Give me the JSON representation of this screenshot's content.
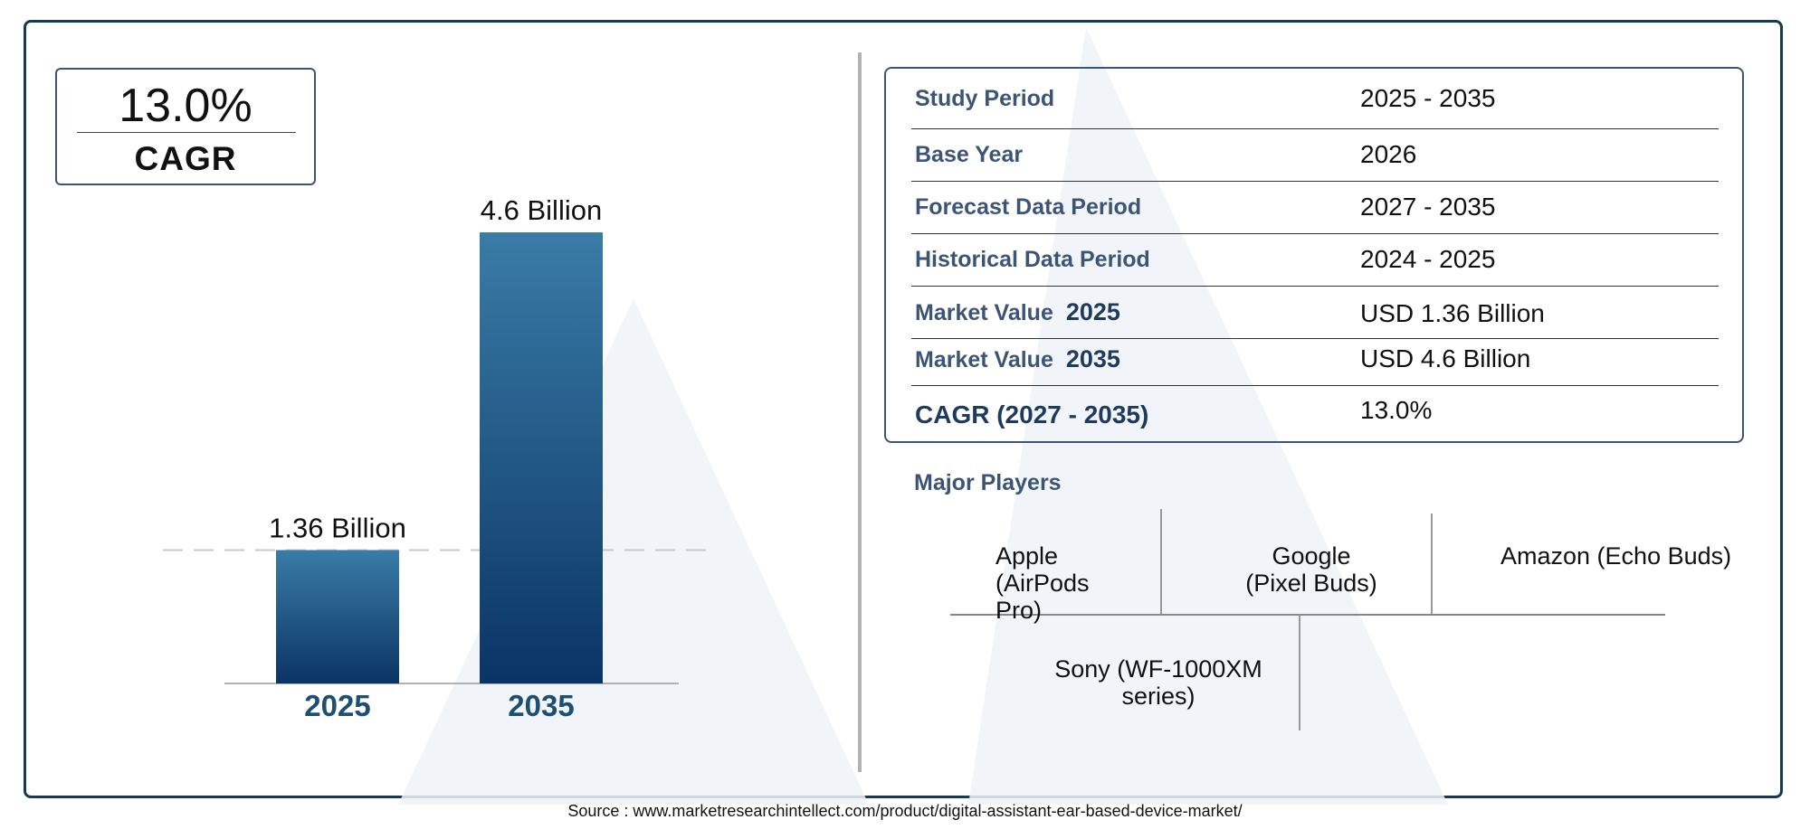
{
  "cagr": {
    "value": "13.0%",
    "label": "CAGR"
  },
  "chart_data": {
    "type": "bar",
    "categories": [
      "2025",
      "2035"
    ],
    "values": [
      1.36,
      4.6
    ],
    "data_labels": [
      "1.36 Billion",
      "4.6 Billion"
    ],
    "title": "",
    "xlabel": "",
    "ylabel": "",
    "ylim": [
      0,
      4.6
    ],
    "reference_line": 1.36,
    "colors": {
      "bar_top": "#3a7ca7",
      "bar_bottom": "#0a3466",
      "tick_label": "#1e4f73",
      "reference_line": "#c8c8c8"
    }
  },
  "info_table": [
    {
      "label": "Study Period",
      "year": "",
      "value": "2025 - 2035"
    },
    {
      "label": "Base Year",
      "year": "",
      "value": "2026"
    },
    {
      "label": "Forecast Data Period",
      "year": "",
      "value": "2027 - 2035"
    },
    {
      "label": "Historical Data Period",
      "year": "",
      "value": "2024 - 2025"
    },
    {
      "label": "Market Value",
      "year": "2025",
      "value": "USD 1.36 Billion"
    },
    {
      "label": "Market Value",
      "year": "2035",
      "value": "USD 4.6 Billion"
    },
    {
      "label": "CAGR (2027 - 2035)",
      "year": "",
      "value": "13.0%"
    }
  ],
  "major_players": {
    "title": "Major Players",
    "players": [
      "Apple (AirPods Pro)",
      "Google (Pixel Buds)",
      "Amazon (Echo Buds)",
      "Sony (WF-1000XM series)"
    ]
  },
  "source": "Source : www.marketresearchintellect.com/product/digital-assistant-ear-based-device-market/",
  "colors": {
    "frame": "#163a4f",
    "label": "#3c5576",
    "accent": "#1e3a5f"
  }
}
